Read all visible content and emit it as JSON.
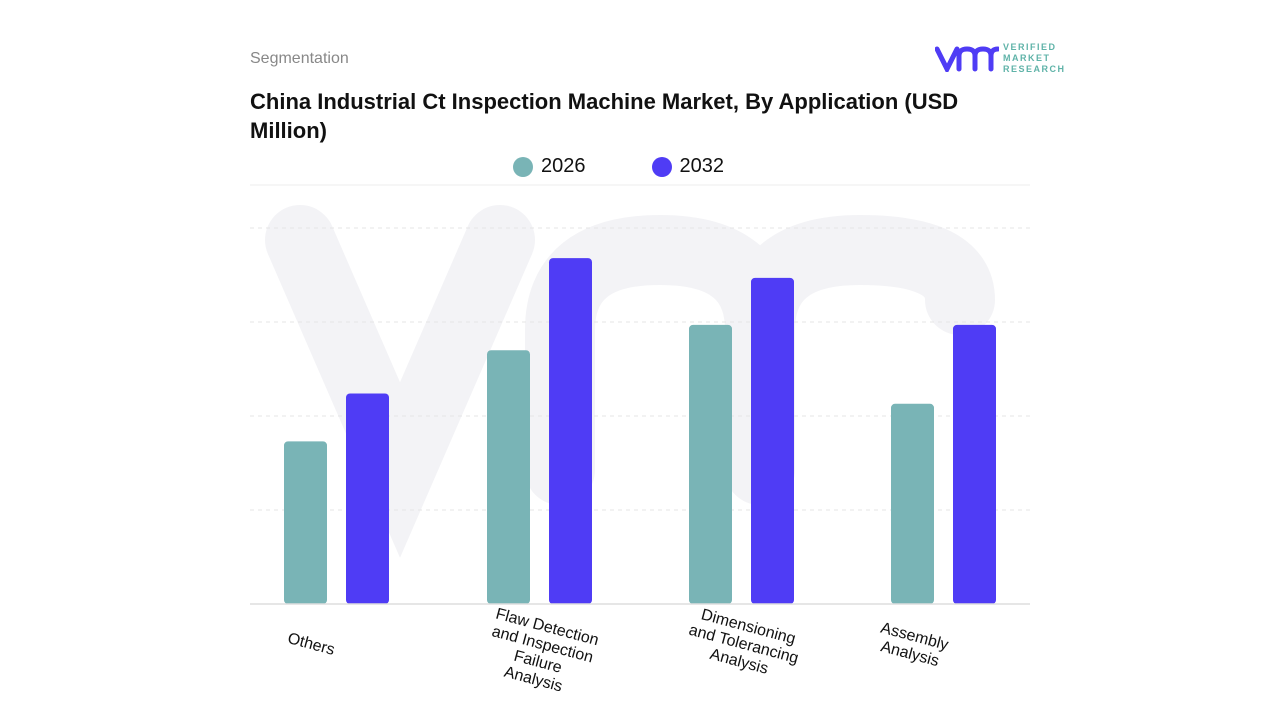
{
  "header": {
    "segment_label": "Segmentation",
    "title": "China Industrial Ct Inspection Machine Market, By Application (USD Million)",
    "logo_text": "VERIFIED MARKET RESEARCH"
  },
  "colors": {
    "2026": "#79b4b6",
    "2032": "#4f3cf5"
  },
  "chart_data": {
    "type": "bar",
    "title": "China Industrial Ct Inspection Machine Market, By Application (USD Million)",
    "categories": [
      "Others",
      "Flaw Detection and Inspection Failure Analysis",
      "Dimensioning and Tolerancing Analysis",
      "Assembly Analysis"
    ],
    "series": [
      {
        "name": "2026",
        "values": [
          1.73,
          2.7,
          2.97,
          2.13
        ]
      },
      {
        "name": "2032",
        "values": [
          2.24,
          3.68,
          3.47,
          2.97
        ]
      }
    ],
    "ylim": [
      0,
      4
    ],
    "grid": true,
    "legend": "top-center",
    "xlabel": "",
    "ylabel": ""
  }
}
